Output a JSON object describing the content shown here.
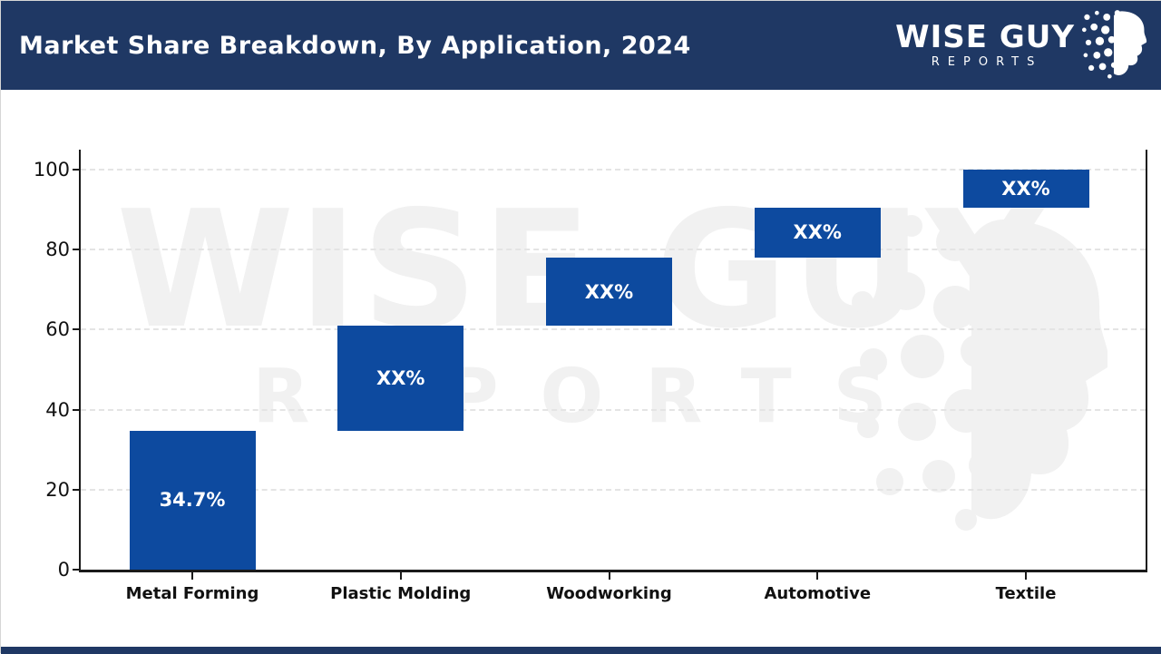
{
  "header": {
    "title": "Market Share Breakdown, By Application, 2024",
    "logo_line1": "WISE GUY",
    "logo_line2": "REPORTS",
    "background": "#1f3864"
  },
  "watermark": {
    "line1": "WISE GUY",
    "line2": "REPORTS"
  },
  "chart_data": {
    "type": "bar",
    "subtype": "waterfall",
    "title": "Market Share Breakdown, By Application, 2024",
    "categories": [
      "Metal Forming",
      "Plastic Molding",
      "Woodworking",
      "Automotive",
      "Textile"
    ],
    "segments": [
      {
        "category": "Metal Forming",
        "start": 0,
        "end": 34.7,
        "label": "34.7%"
      },
      {
        "category": "Plastic Molding",
        "start": 34.7,
        "end": 61.0,
        "label": "XX%"
      },
      {
        "category": "Woodworking",
        "start": 61.0,
        "end": 78.0,
        "label": "XX%"
      },
      {
        "category": "Automotive",
        "start": 78.0,
        "end": 90.5,
        "label": "XX%"
      },
      {
        "category": "Textile",
        "start": 90.5,
        "end": 100.0,
        "label": "XX%"
      }
    ],
    "yticks": [
      0,
      20,
      40,
      60,
      80,
      100
    ],
    "ylim": [
      0,
      105
    ],
    "xlabel": "",
    "ylabel": "",
    "grid": "horizontal-dashed",
    "legend": "none",
    "bar_color": "#0d4a9f",
    "bar_label_color": "#ffffff",
    "axis_color": "#1a1a1a",
    "gridline_color": "#e4e4e4"
  },
  "footer": {
    "background": "#1f3864"
  }
}
